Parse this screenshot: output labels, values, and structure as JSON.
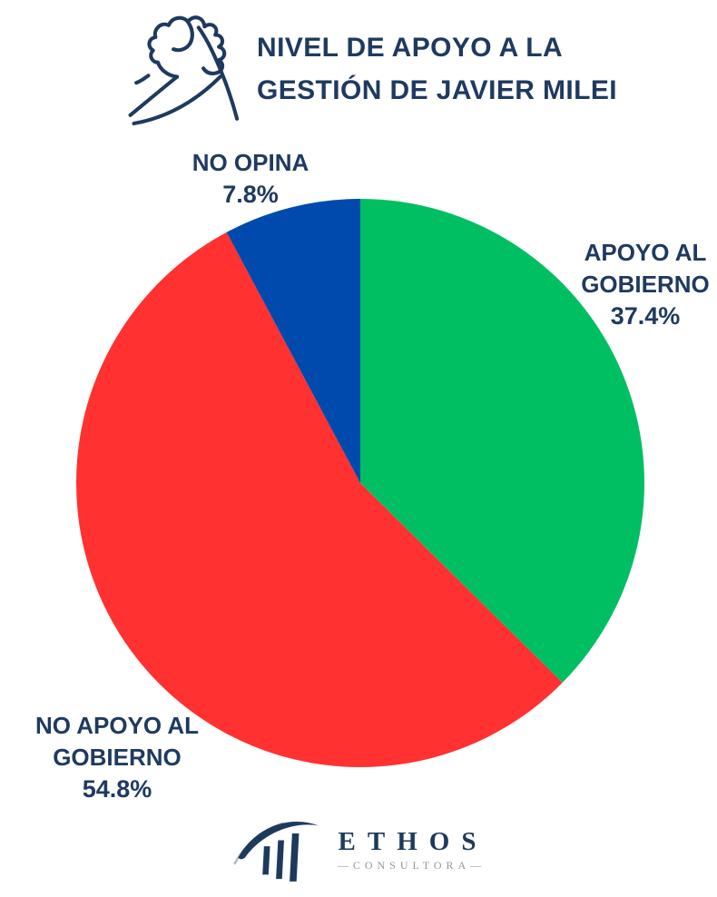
{
  "header": {
    "title_line1": "NIVEL DE APOYO A LA",
    "title_line2": "GESTIÓN DE JAVIER MILEI"
  },
  "chart_data": {
    "type": "pie",
    "title": "NIVEL DE APOYO A LA GESTIÓN DE JAVIER MILEI",
    "slices": [
      {
        "label": "APOYO AL GOBIERNO",
        "value": 37.4,
        "display": "37.4%",
        "color": "#00bf63"
      },
      {
        "label": "NO APOYO AL GOBIERNO",
        "value": 54.8,
        "display": "54.8%",
        "color": "#ff3131"
      },
      {
        "label": "NO OPINA",
        "value": 7.8,
        "display": "7.8%",
        "color": "#004aad"
      }
    ],
    "start_at_top": true,
    "direction": "clockwise",
    "legend": "none",
    "labels_position": "outside"
  },
  "footer": {
    "brand": "ETHOS",
    "tagline": "CONSULTORA",
    "tagline_display": "—CONSULTORA—"
  },
  "icons": {
    "header": "handshake-icon",
    "footer": "pillars-swoosh-icon"
  },
  "colors": {
    "background": "#ffffff",
    "title_navy": "#1f3a60",
    "logo_navy": "#1d3a5c",
    "tagline_gray": "#9097a0",
    "slice_green": "#00bf63",
    "slice_red": "#ff3131",
    "slice_blue": "#004aad"
  }
}
